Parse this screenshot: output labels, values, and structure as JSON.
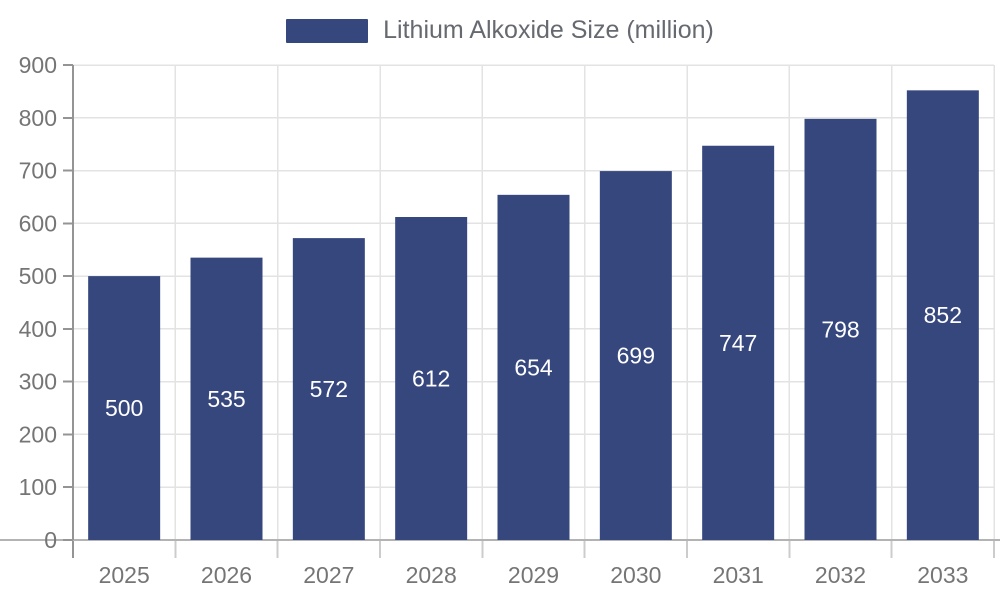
{
  "legend": {
    "label": "Lithium Alkoxide Size (million)"
  },
  "chart_data": {
    "type": "bar",
    "title": "",
    "xlabel": "",
    "ylabel": "",
    "categories": [
      "2025",
      "2026",
      "2027",
      "2028",
      "2029",
      "2030",
      "2031",
      "2032",
      "2033"
    ],
    "series": [
      {
        "name": "Lithium Alkoxide Size (million)",
        "values": [
          500,
          535,
          572,
          612,
          654,
          699,
          747,
          798,
          852
        ]
      }
    ],
    "data_labels_visible": true,
    "ylim": [
      0,
      900
    ],
    "yticks": [
      0,
      100,
      200,
      300,
      400,
      500,
      600,
      700,
      800,
      900
    ],
    "grid": true,
    "legend_position": "top-center",
    "colors": {
      "bar": "#36477E",
      "grid_line": "#e3e3e3",
      "y_axis_line": "#949494",
      "x_axis_line": "#b3b3b3",
      "x_tick": "#cccccc",
      "axis_label_text": "#757575",
      "bar_label_text": "#ffffff",
      "legend_text": "#666a70"
    }
  }
}
